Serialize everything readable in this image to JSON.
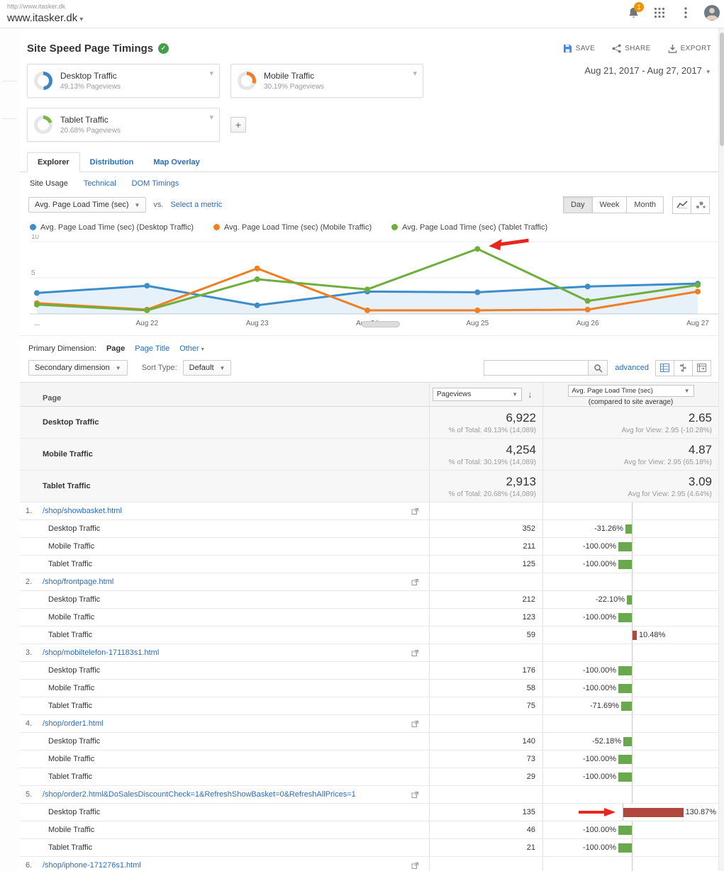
{
  "colors": {
    "link": "#2b6db5",
    "green_bar": "#6aa84f",
    "red_bar": "#b0483d",
    "arrow": "#e8261d",
    "accent_blue": "#4285f4",
    "badge_orange": "#f09300"
  },
  "topbar": {
    "url": "http://www.itasker.dk",
    "account": "www.itasker.dk",
    "notification_count": "1"
  },
  "report": {
    "title": "Site Speed Page Timings",
    "save_label": "SAVE",
    "share_label": "SHARE",
    "export_label": "EXPORT",
    "date_range": "Aug 21, 2017 - Aug 27, 2017"
  },
  "segments": [
    {
      "name": "Desktop Traffic",
      "subtitle": "49.13% Pageviews",
      "color": "#3a87c8",
      "pct": 49.13
    },
    {
      "name": "Mobile Traffic",
      "subtitle": "30.19% Pageviews",
      "color": "#ed7d31",
      "pct": 30.19
    },
    {
      "name": "Tablet Traffic",
      "subtitle": "20.68% Pageviews",
      "color": "#7ab648",
      "pct": 20.68
    }
  ],
  "add_segment_label": "+",
  "tabs": [
    "Explorer",
    "Distribution",
    "Map Overlay"
  ],
  "subtabs": [
    "Site Usage",
    "Technical",
    "DOM Timings"
  ],
  "metric_bar": {
    "metric": "Avg. Page Load Time (sec)",
    "vs_label": "vs.",
    "select_metric_label": "Select a metric",
    "granularity": [
      "Day",
      "Week",
      "Month"
    ]
  },
  "chart_data": {
    "type": "line",
    "x": [
      "...",
      "Aug 22",
      "Aug 23",
      "Aug 24",
      "Aug 25",
      "Aug 26",
      "Aug 27"
    ],
    "ylim": [
      0,
      10
    ],
    "yticks": [
      5,
      10
    ],
    "series": [
      {
        "name": "Avg. Page Load Time (sec) (Desktop Traffic)",
        "color": "#3c8dca",
        "fill": true,
        "values": [
          2.9,
          3.9,
          1.2,
          3.1,
          3.0,
          3.8,
          4.2
        ]
      },
      {
        "name": "Avg. Page Load Time (sec) (Mobile Traffic)",
        "color": "#ee8023",
        "fill": false,
        "values": [
          1.5,
          0.6,
          6.3,
          0.5,
          0.5,
          0.6,
          3.1
        ]
      },
      {
        "name": "Avg. Page Load Time (sec) (Tablet Traffic)",
        "color": "#6fae3c",
        "fill": false,
        "values": [
          1.3,
          0.5,
          4.8,
          3.4,
          9.0,
          1.8,
          4.0
        ]
      }
    ],
    "annotation": "red arrow pointing at Tablet Traffic peak on Aug 25"
  },
  "primary_dimension": {
    "label": "Primary Dimension:",
    "options": [
      "Page",
      "Page Title",
      "Other"
    ]
  },
  "toolbar": {
    "secondary_dimension_label": "Secondary dimension",
    "sort_type_label": "Sort Type:",
    "sort_type_value": "Default",
    "search_value": "",
    "advanced_label": "advanced"
  },
  "table": {
    "headers": {
      "page": "Page",
      "pageviews": "Pageviews",
      "avg": "Avg. Page Load Time (sec)",
      "avg_note": "(compared to site average)"
    },
    "summary_rows": [
      {
        "label": "Desktop Traffic",
        "pageviews": "6,922",
        "pageviews_note": "% of Total: 49.13% (14,089)",
        "avg": "2.65",
        "avg_note": "Avg for View: 2.95 (-10.28%)"
      },
      {
        "label": "Mobile Traffic",
        "pageviews": "4,254",
        "pageviews_note": "% of Total: 30.19% (14,089)",
        "avg": "4.87",
        "avg_note": "Avg for View: 2.95 (65.18%)"
      },
      {
        "label": "Tablet Traffic",
        "pageviews": "2,913",
        "pageviews_note": "% of Total: 20.68% (14,089)",
        "avg": "3.09",
        "avg_note": "Avg for View: 2.95 (4.64%)"
      }
    ],
    "groups": [
      {
        "index": "1.",
        "url": "/shop/showbasket.html",
        "rows": [
          {
            "label": "Desktop Traffic",
            "pageviews": "352",
            "delta": "-31.26%"
          },
          {
            "label": "Mobile Traffic",
            "pageviews": "211",
            "delta": "-100.00%"
          },
          {
            "label": "Tablet Traffic",
            "pageviews": "125",
            "delta": "-100.00%"
          }
        ]
      },
      {
        "index": "2.",
        "url": "/shop/frontpage.html",
        "rows": [
          {
            "label": "Desktop Traffic",
            "pageviews": "212",
            "delta": "-22.10%"
          },
          {
            "label": "Mobile Traffic",
            "pageviews": "123",
            "delta": "-100.00%"
          },
          {
            "label": "Tablet Traffic",
            "pageviews": "59",
            "delta": "10.48%"
          }
        ]
      },
      {
        "index": "3.",
        "url": "/shop/mobiltelefon-171183s1.html",
        "rows": [
          {
            "label": "Desktop Traffic",
            "pageviews": "176",
            "delta": "-100.00%"
          },
          {
            "label": "Mobile Traffic",
            "pageviews": "58",
            "delta": "-100.00%"
          },
          {
            "label": "Tablet Traffic",
            "pageviews": "75",
            "delta": "-71.69%"
          }
        ]
      },
      {
        "index": "4.",
        "url": "/shop/order1.html",
        "rows": [
          {
            "label": "Desktop Traffic",
            "pageviews": "140",
            "delta": "-52.18%"
          },
          {
            "label": "Mobile Traffic",
            "pageviews": "73",
            "delta": "-100.00%"
          },
          {
            "label": "Tablet Traffic",
            "pageviews": "29",
            "delta": "-100.00%"
          }
        ]
      },
      {
        "index": "5.",
        "url": "/shop/order2.html&DoSalesDiscountCheck=1&RefreshShowBasket=0&RefreshAllPrices=1",
        "rows": [
          {
            "label": "Desktop Traffic",
            "pageviews": "135",
            "delta": "130.87%",
            "annotation": "red-arrow"
          },
          {
            "label": "Mobile Traffic",
            "pageviews": "46",
            "delta": "-100.00%"
          },
          {
            "label": "Tablet Traffic",
            "pageviews": "21",
            "delta": "-100.00%"
          }
        ]
      },
      {
        "index": "6.",
        "url": "/shop/iphone-171276s1.html",
        "rows": []
      }
    ]
  }
}
